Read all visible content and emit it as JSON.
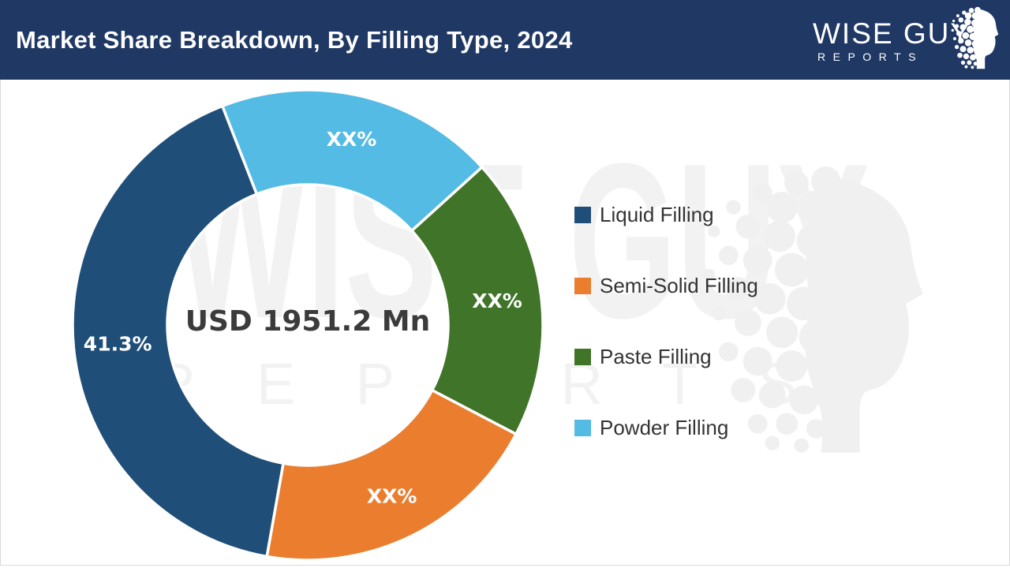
{
  "header": {
    "title": "Market Share Breakdown, By Filling Type, 2024",
    "background_color": "#203864"
  },
  "logo": {
    "line1": "WISE GUY",
    "line2": "REPORTS",
    "icon": "dotted-head-profile"
  },
  "watermark": {
    "line1": "WISE GUY",
    "line2": "REPORTS",
    "icon": "dotted-head-profile"
  },
  "chart_data": {
    "type": "donut",
    "title": "Market Share Breakdown, By Filling Type, 2024",
    "center_label": "USD 1951.2 Mn",
    "start_angle_deg": -21.3,
    "inner_radius_ratio": 0.6,
    "legend_position": "right",
    "slices": [
      {
        "label": "Liquid Filling",
        "value_pct": 41.3,
        "display": "41.3%",
        "color": "#1F4E79"
      },
      {
        "label": "Semi-Solid Filling",
        "value_pct": 20.1,
        "display": "XX%",
        "color": "#EB7D2F"
      },
      {
        "label": "Paste Filling",
        "value_pct": 19.4,
        "display": "XX%",
        "color": "#407428"
      },
      {
        "label": "Powder Filling",
        "value_pct": 19.2,
        "display": "XX%",
        "color": "#54BBE4"
      }
    ]
  }
}
